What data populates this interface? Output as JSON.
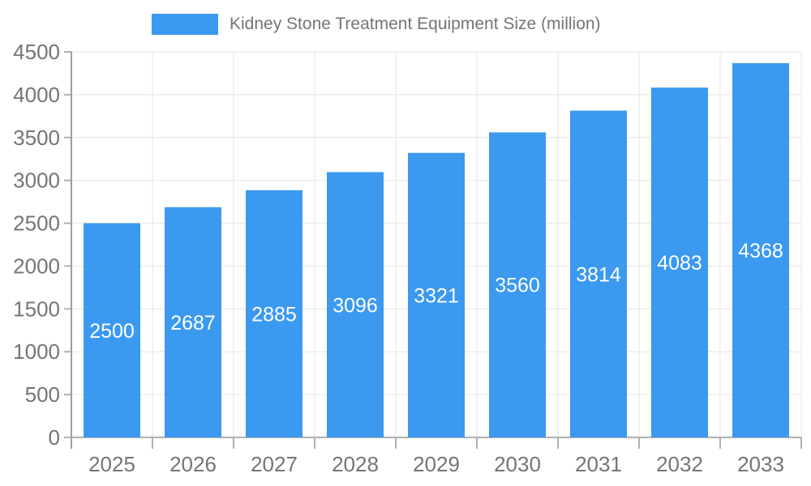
{
  "chart_data": {
    "type": "bar",
    "title": "Kidney Stone Treatment Equipment Size (million)",
    "legend": {
      "label": "Kidney Stone Treatment Equipment Size (million)",
      "position": "top"
    },
    "categories": [
      "2025",
      "2026",
      "2027",
      "2028",
      "2029",
      "2030",
      "2031",
      "2032",
      "2033"
    ],
    "values": [
      2500,
      2687,
      2885,
      3096,
      3321,
      3560,
      3814,
      4083,
      4368
    ],
    "value_labels": [
      "2500",
      "2687",
      "2885",
      "3096",
      "3321",
      "3560",
      "3814",
      "4083",
      "4368"
    ],
    "xlabel": "",
    "ylabel": "",
    "ylim": [
      0,
      4500
    ],
    "yticks": [
      0,
      500,
      1000,
      1500,
      2000,
      2500,
      3000,
      3500,
      4000,
      4500
    ],
    "grid": true,
    "colors": {
      "bar": "#3b99f0",
      "gridline": "#e6e6e6",
      "axis": "#b0b0b0",
      "tick_text": "#757575",
      "value_label": "#ffffff",
      "background": "#ffffff"
    }
  }
}
